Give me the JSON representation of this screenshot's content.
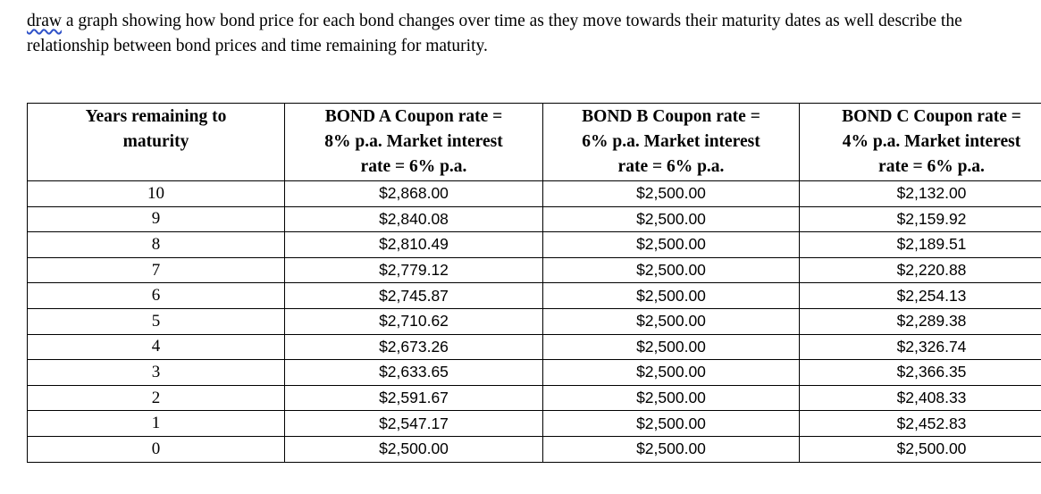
{
  "document": {
    "paragraph_lead": "draw",
    "paragraph_rest": " a graph showing how bond price for each bond changes over time as they move towards their maturity dates as well describe the relationship between bond prices and time remaining for maturity.",
    "squiggle_color": "#2f52c8"
  },
  "table": {
    "headers": [
      "Years remaining to\nmaturity",
      "BOND A Coupon rate =\n8% p.a. Market interest\nrate = 6% p.a.",
      "BOND B Coupon rate =\n6% p.a. Market interest\nrate = 6% p.a.",
      "BOND C Coupon rate =\n4% p.a. Market interest\nrate = 6% p.a."
    ],
    "rows": [
      [
        "10",
        "$2,868.00",
        "$2,500.00",
        "$2,132.00"
      ],
      [
        "9",
        "$2,840.08",
        "$2,500.00",
        "$2,159.92"
      ],
      [
        "8",
        "$2,810.49",
        "$2,500.00",
        "$2,189.51"
      ],
      [
        "7",
        "$2,779.12",
        "$2,500.00",
        "$2,220.88"
      ],
      [
        "6",
        "$2,745.87",
        "$2,500.00",
        "$2,254.13"
      ],
      [
        "5",
        "$2,710.62",
        "$2,500.00",
        "$2,289.38"
      ],
      [
        "4",
        "$2,673.26",
        "$2,500.00",
        "$2,326.74"
      ],
      [
        "3",
        "$2,633.65",
        "$2,500.00",
        "$2,366.35"
      ],
      [
        "2",
        "$2,591.67",
        "$2,500.00",
        "$2,408.33"
      ],
      [
        "1",
        "$2,547.17",
        "$2,500.00",
        "$2,452.83"
      ],
      [
        "0",
        "$2,500.00",
        "$2,500.00",
        "$2,500.00"
      ]
    ]
  }
}
